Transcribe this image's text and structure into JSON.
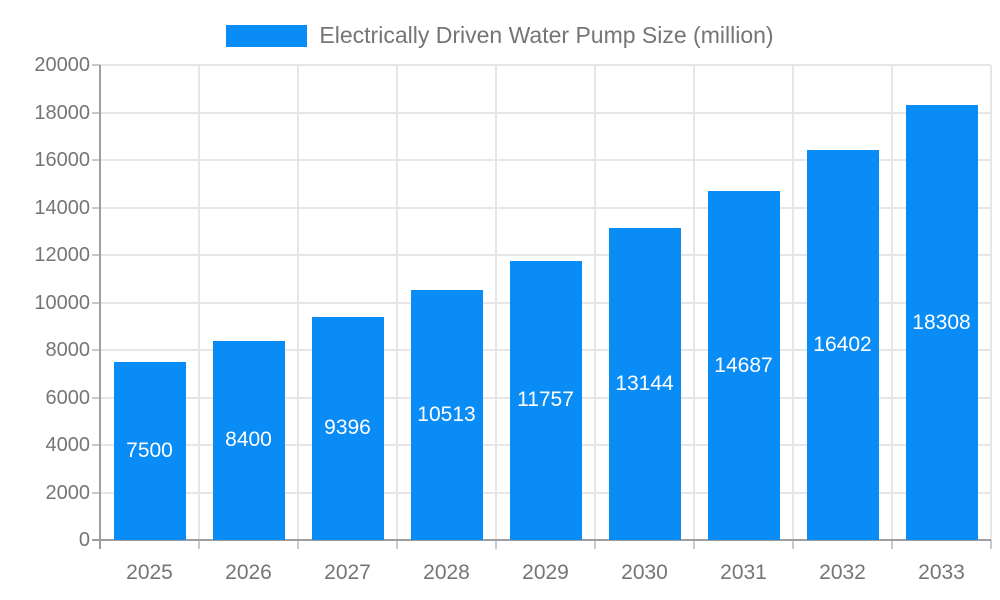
{
  "chart_data": {
    "type": "bar",
    "title": "Electrically Driven Water Pump Size (million)",
    "categories": [
      "2025",
      "2026",
      "2027",
      "2028",
      "2029",
      "2030",
      "2031",
      "2032",
      "2033"
    ],
    "values": [
      7500,
      8400,
      9396,
      10513,
      11757,
      13144,
      14687,
      16402,
      18308
    ],
    "xlabel": "",
    "ylabel": "",
    "ylim": [
      0,
      20000
    ],
    "ytick_step": 2000,
    "ytick_labels": [
      "0",
      "2000",
      "4000",
      "6000",
      "8000",
      "10000",
      "12000",
      "14000",
      "16000",
      "18000",
      "20000"
    ],
    "grid": true,
    "legend_position": "top-center",
    "bar_color": "#0a8cf7",
    "bar_label_color": "#ffffff",
    "axis_text_color": "#757575",
    "axis_line_color": "#9e9e9e",
    "gridline_color": "#e6e6e6"
  }
}
